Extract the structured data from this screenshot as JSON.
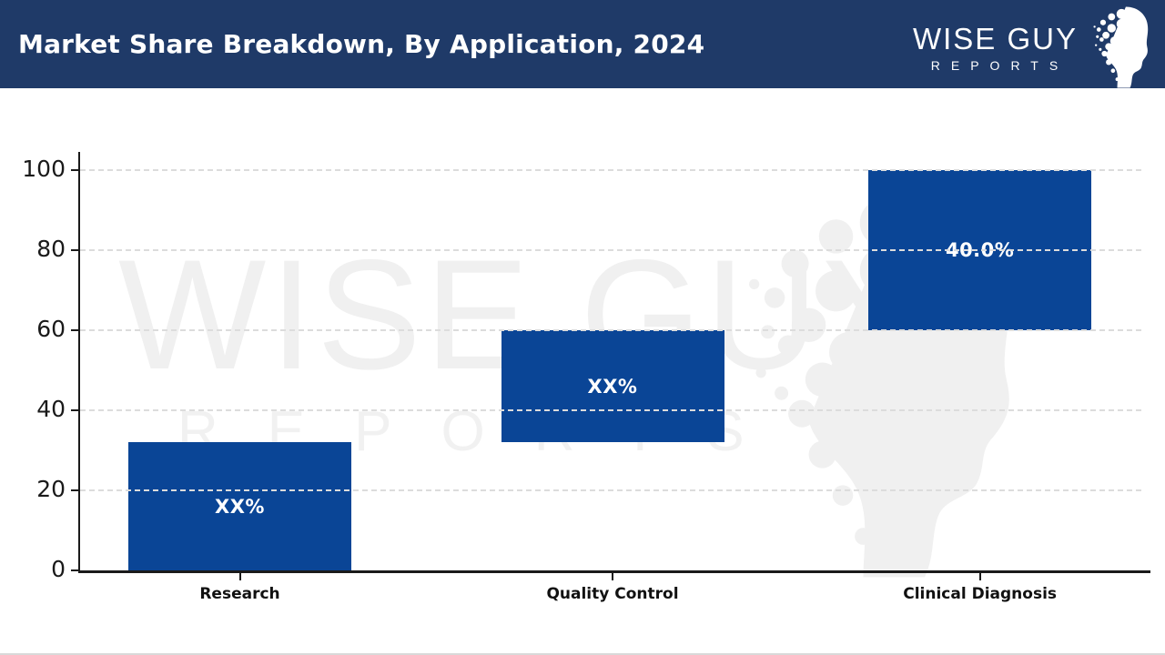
{
  "header": {
    "title": "Market Share Breakdown, By Application, 2024",
    "bg_color": "#1f3a68",
    "logo": {
      "wordmark": "WISE GUY",
      "subtext": "REPORTS"
    }
  },
  "watermark": {
    "wordmark": "WISE GUY",
    "subtext": "REPORTS"
  },
  "chart_data": {
    "type": "bar",
    "variant": "floating-segment-waterfall",
    "title": "Market Share Breakdown, By Application, 2024",
    "categories": [
      "Research",
      "Quality Control",
      "Clinical Diagnosis"
    ],
    "segments": [
      {
        "category": "Research",
        "start": 0,
        "end": 32,
        "value": 32,
        "label": "XX%"
      },
      {
        "category": "Quality Control",
        "start": 32,
        "end": 60,
        "value": 28,
        "label": "XX%"
      },
      {
        "category": "Clinical Diagnosis",
        "start": 60,
        "end": 100,
        "value": 40,
        "label": "40.0%"
      }
    ],
    "ylim": [
      0,
      100
    ],
    "yticks": [
      0,
      20,
      40,
      60,
      80,
      100
    ],
    "xlabel": "",
    "ylabel": "",
    "grid": {
      "horizontal": true,
      "style": "dashed"
    },
    "legend_position": "none",
    "colors": {
      "bar": "#0a4596",
      "bar_label": "#ffffff",
      "grid": "#dcdcdc",
      "axis": "#1a1a1a",
      "tick_label": "#1a1a1a"
    }
  }
}
